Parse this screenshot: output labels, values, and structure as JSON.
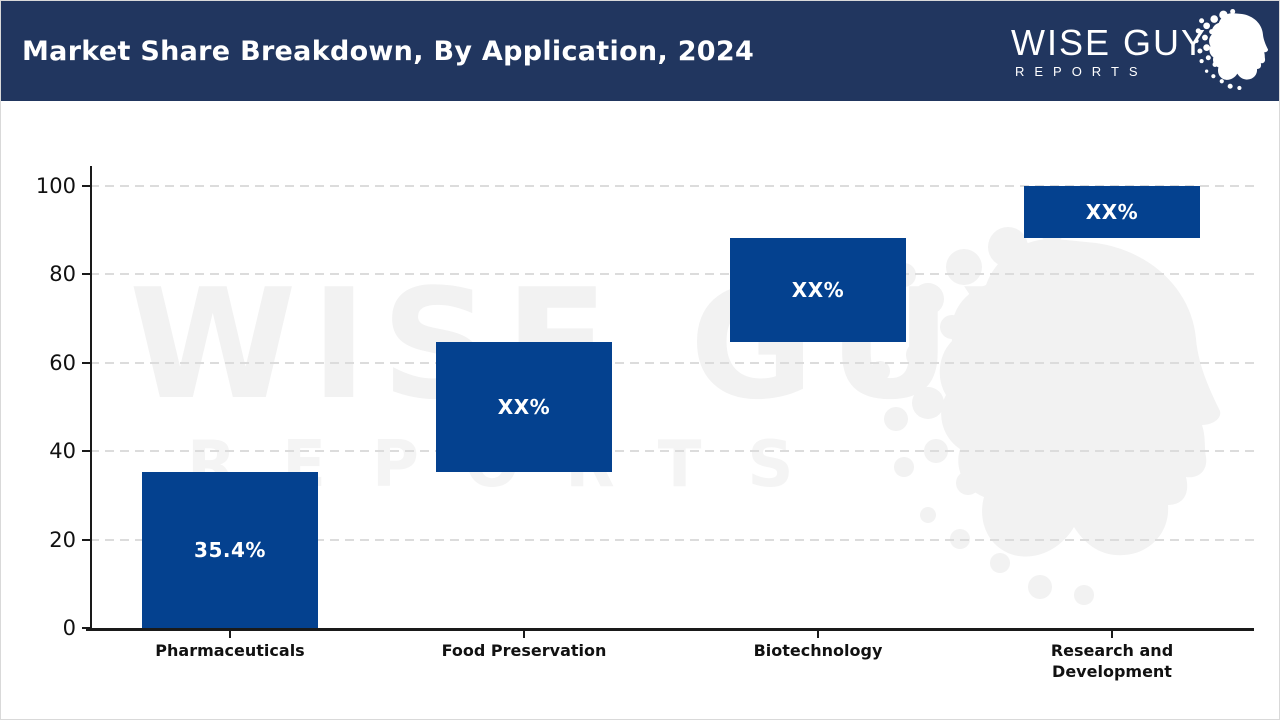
{
  "header": {
    "title": "Market Share Breakdown, By Application, 2024",
    "logo": {
      "line1": "WISE GUY",
      "line2": "REPORTS"
    }
  },
  "watermark": {
    "line1": "WISE GUY",
    "line2": "REPORTS"
  },
  "colors": {
    "header_bg": "#21365F",
    "bar": "#04418F",
    "grid": "#DCDCDC",
    "axis": "#1A1A1A",
    "bar_label": "#FFFFFF",
    "watermark": "#F2F2F2"
  },
  "chart_data": {
    "type": "bar",
    "subtype": "waterfall",
    "title": "Market Share Breakdown, By Application, 2024",
    "categories": [
      "Pharmaceuticals",
      "Food Preservation",
      "Biotechnology",
      "Research and Development"
    ],
    "segments": [
      {
        "category": "Pharmaceuticals",
        "start": 0,
        "end": 35.4,
        "value": 35.4,
        "label": "35.4%"
      },
      {
        "category": "Food Preservation",
        "start": 35.4,
        "end": 64.8,
        "value": 29.4,
        "label": "XX%"
      },
      {
        "category": "Biotechnology",
        "start": 64.8,
        "end": 88.2,
        "value": 23.4,
        "label": "XX%"
      },
      {
        "category": "Research and Development",
        "start": 88.2,
        "end": 100,
        "value": 11.8,
        "label": "XX%"
      }
    ],
    "yticks": [
      0,
      20,
      40,
      60,
      80,
      100
    ],
    "ylim": [
      0,
      105
    ],
    "xlabel": "",
    "ylabel": "",
    "legend": null,
    "grid": "horizontal-dashed"
  }
}
